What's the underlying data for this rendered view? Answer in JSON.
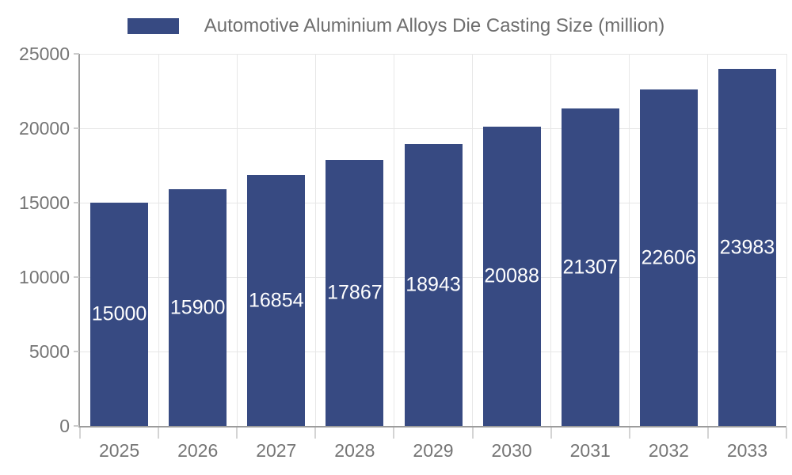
{
  "chart_data": {
    "type": "bar",
    "title": "Automotive Aluminium Alloys Die Casting Size (million)",
    "categories": [
      "2025",
      "2026",
      "2027",
      "2028",
      "2029",
      "2030",
      "2031",
      "2032",
      "2033"
    ],
    "values": [
      15000,
      15900,
      16854,
      17867,
      18943,
      20088,
      21307,
      22606,
      23983
    ],
    "xlabel": "",
    "ylabel": "",
    "ylim": [
      0,
      25000
    ],
    "yticks": [
      0,
      5000,
      10000,
      15000,
      20000,
      25000
    ],
    "grid": true,
    "legend_position": "top-center",
    "colors": {
      "bar": "#374A82",
      "value_label": "#FFFFFF",
      "axis_label": "#757575",
      "legend_text": "#6E6E6E",
      "gridline": "#E7E7E7",
      "axis_line": "#9C9C9C",
      "tick": "#CCCCCC",
      "background": "#FFFFFF"
    }
  }
}
